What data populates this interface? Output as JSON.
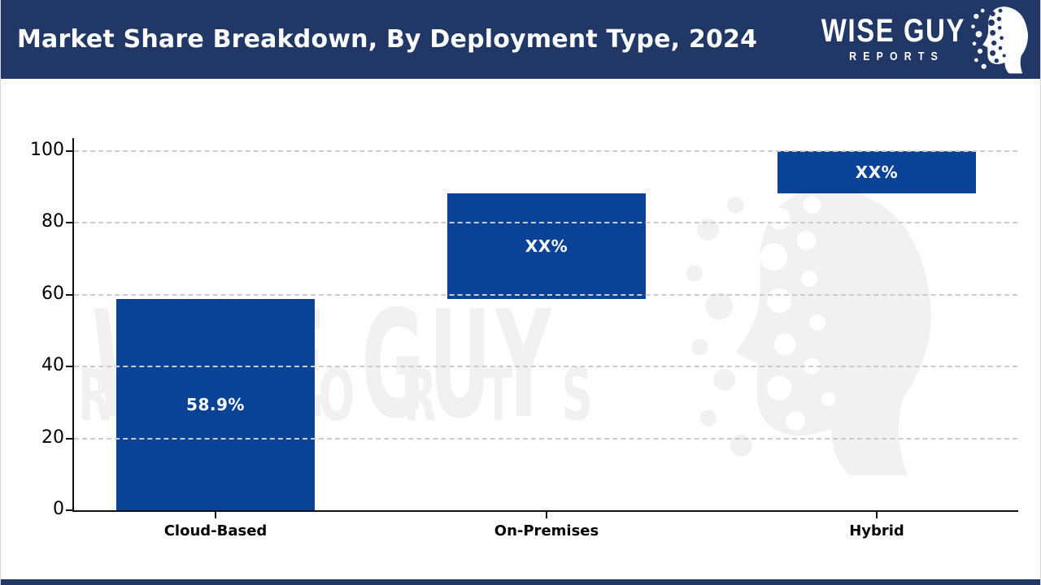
{
  "header": {
    "title": "Market Share Breakdown, By Deployment Type, 2024",
    "logo": {
      "line1": "WISE GUY",
      "line2": "REPORTS"
    }
  },
  "watermark": {
    "line1": "WISE GUY",
    "line2": "REPORTS"
  },
  "colors": {
    "header_bg": "#213866",
    "footer_bg": "#213866",
    "bar_fill": "#0a4296",
    "bar_label_text": "#ffffff",
    "gridline": "#cccccc",
    "axis": "#111111",
    "watermark_gray": "#f1f1f2"
  },
  "chart_data": {
    "type": "bar",
    "subtype": "floating-stacked-percentage-bars",
    "title": "Market Share Breakdown, By Deployment Type, 2024",
    "categories": [
      "Cloud-Based",
      "On-Premises",
      "Hybrid"
    ],
    "segments": [
      {
        "category": "Cloud-Based",
        "start": 0,
        "end": 58.9,
        "label": "58.9%"
      },
      {
        "category": "On-Premises",
        "start": 58.9,
        "end": 88.2,
        "label": "XX%"
      },
      {
        "category": "Hybrid",
        "start": 88.2,
        "end": 100,
        "label": "XX%"
      }
    ],
    "values": [
      58.9,
      29.3,
      11.8
    ],
    "yticks": [
      0,
      20,
      40,
      60,
      80,
      100
    ],
    "ylim": [
      0,
      105
    ],
    "xlabel": "",
    "ylabel": "",
    "grid": "horizontal-dashed",
    "legend": "none"
  }
}
